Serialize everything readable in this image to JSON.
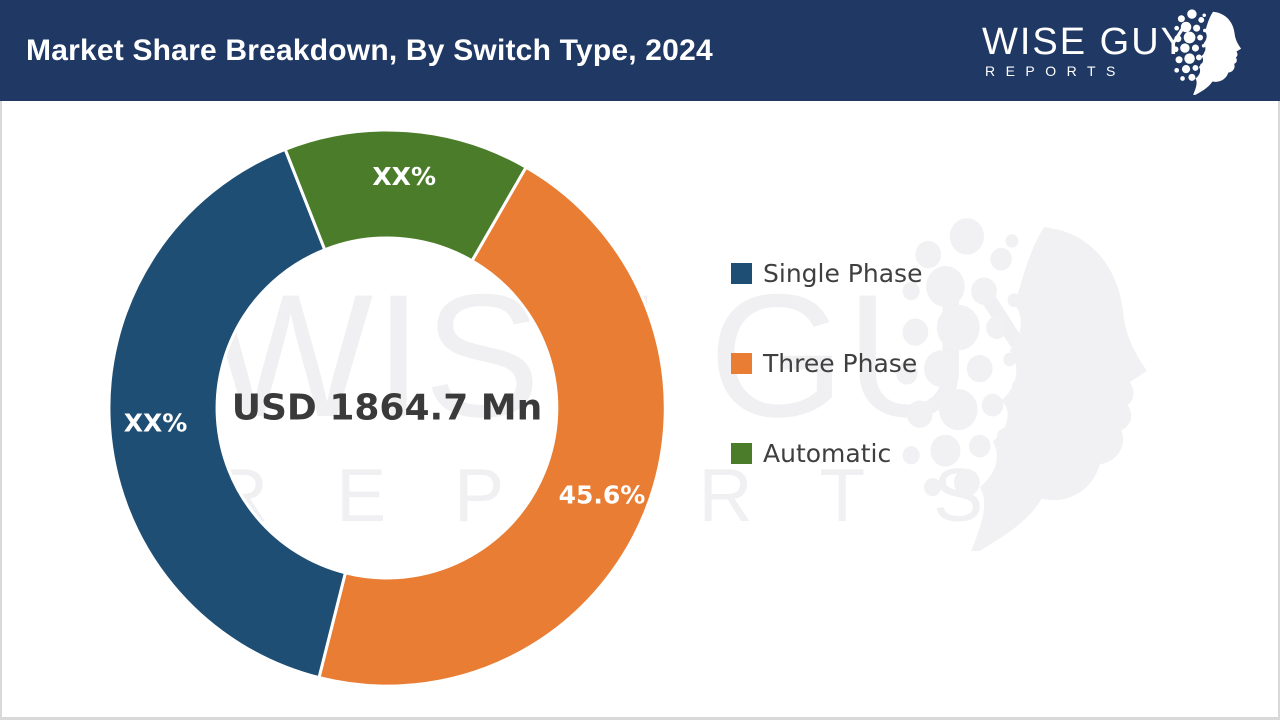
{
  "header": {
    "title": "Market Share Breakdown, By Switch Type, 2024",
    "logo": {
      "wordmark": "WISE GUY",
      "subtitle": "REPORTS"
    },
    "bg_color": "#203864"
  },
  "watermark": {
    "line1": "WISE GUY",
    "line2": "REPORTS"
  },
  "chart_data": {
    "type": "donut",
    "title": "Market Share Breakdown, By Switch Type, 2024",
    "center_label": "USD 1864.7 Mn",
    "legend_position": "right",
    "start_angle_deg": 30,
    "draw_order": [
      1,
      0,
      2
    ],
    "segments": [
      {
        "label": "Single Phase",
        "value": 40.1,
        "display": "XX%",
        "color": "#1f4e74"
      },
      {
        "label": "Three Phase",
        "value": 45.6,
        "display": "45.6%",
        "color": "#e87d33"
      },
      {
        "label": "Automatic",
        "value": 14.3,
        "display": "XX%",
        "color": "#4a7c2a"
      }
    ]
  },
  "colors": {
    "header_bg": "#203864",
    "content_border": "#d9d9d9",
    "watermark": "#f0f0f2",
    "legend_text": "#3f3f3f",
    "center_text": "#3a3a3a"
  }
}
